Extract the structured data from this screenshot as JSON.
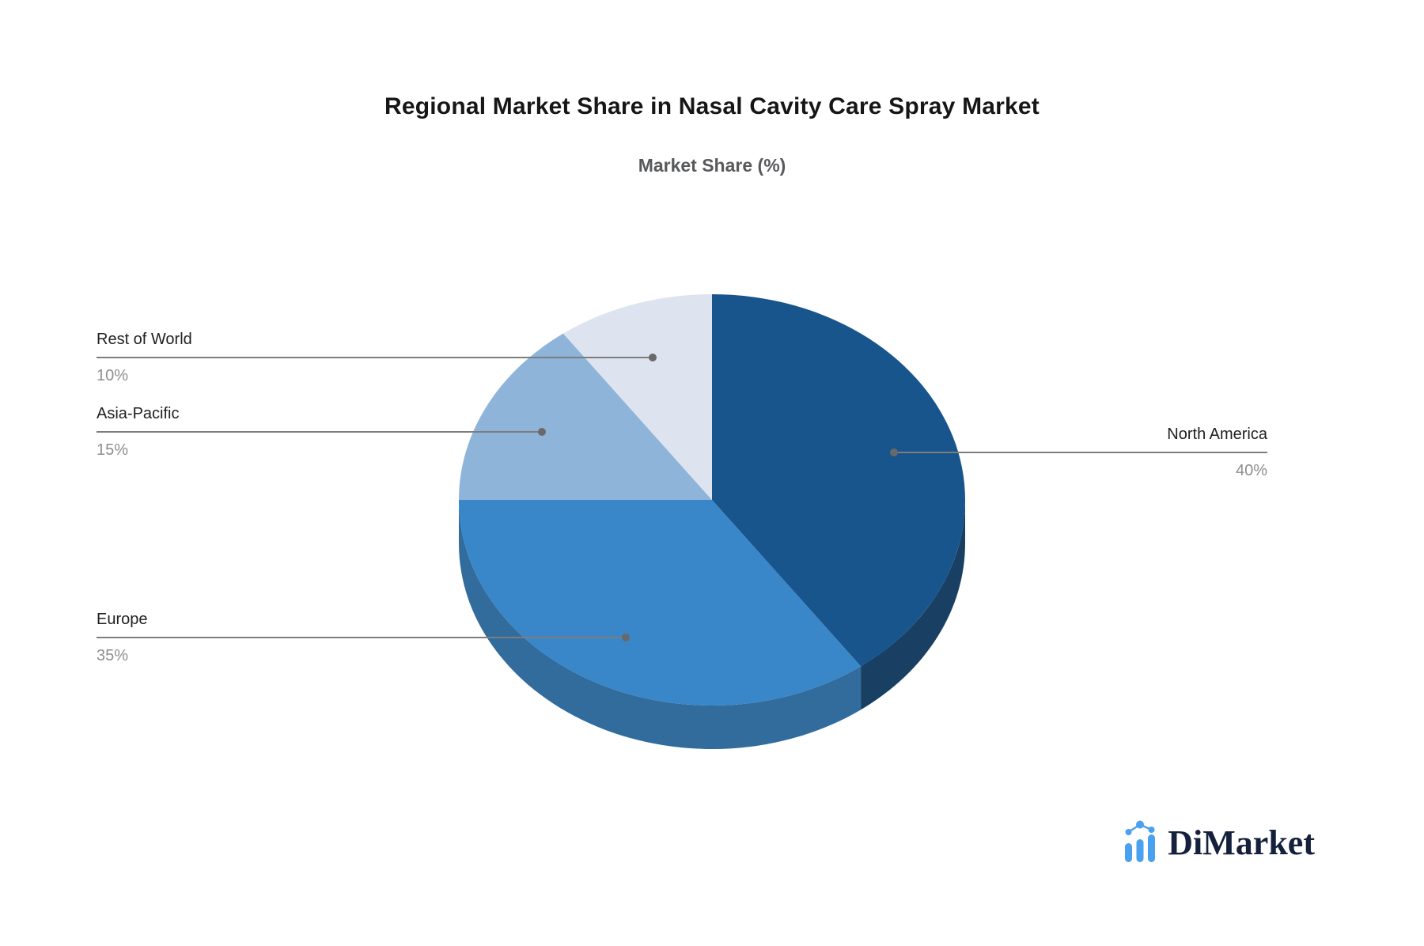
{
  "title": "Regional Market Share in Nasal Cavity Care Spray Market",
  "subtitle": "Market Share (%)",
  "background_color": "#ffffff",
  "chart_data": {
    "type": "pie",
    "style": "3d",
    "title": "Regional Market Share in Nasal Cavity Care Spray Market",
    "subtitle": "Market Share (%)",
    "unit": "%",
    "start_angle_deg": 0,
    "direction": "clockwise",
    "legend": "none",
    "labels": "callout-leader-lines",
    "leader_line_color": "#7d7d7d",
    "label_name_color": "#212121",
    "label_value_color": "#8E8E8E",
    "points": [
      {
        "name": "North America",
        "value": 40,
        "pct_label": "40%",
        "color": "#17558C",
        "side_color": "#194063"
      },
      {
        "name": "Europe",
        "value": 35,
        "pct_label": "35%",
        "color": "#3986C9",
        "side_color": "#316C9C"
      },
      {
        "name": "Asia-Pacific",
        "value": 15,
        "pct_label": "15%",
        "color": "#8FB4DA",
        "side_color": "#7FA3C9"
      },
      {
        "name": "Rest of World",
        "value": 10,
        "pct_label": "10%",
        "color": "#DDE4EF",
        "side_color": "#C3CDDC"
      }
    ]
  },
  "brand": {
    "name": "DiMarket",
    "text_color": "#14203C",
    "icon": "bar-chart-logo-icon",
    "icon_color": "#49A1EF"
  }
}
